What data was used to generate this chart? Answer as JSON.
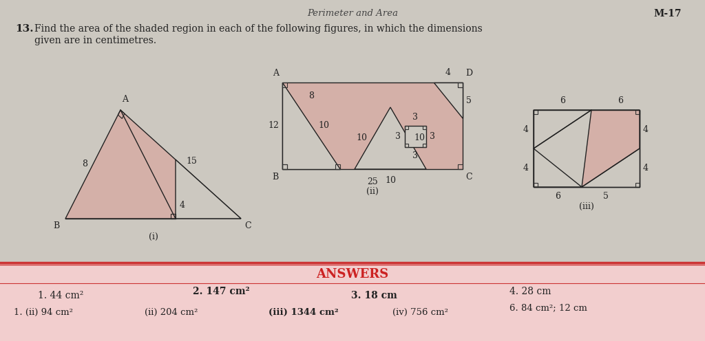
{
  "title": "Perimeter and Area",
  "page_ref": "M-17",
  "bg_color": "#ccc8c0",
  "fig_shade": "#d4b0a8",
  "fig_white": "#c8c4bc",
  "answers_bg": "#f0c8c8",
  "answers_title": "ANSWERS",
  "ans_red": "#cc2222"
}
